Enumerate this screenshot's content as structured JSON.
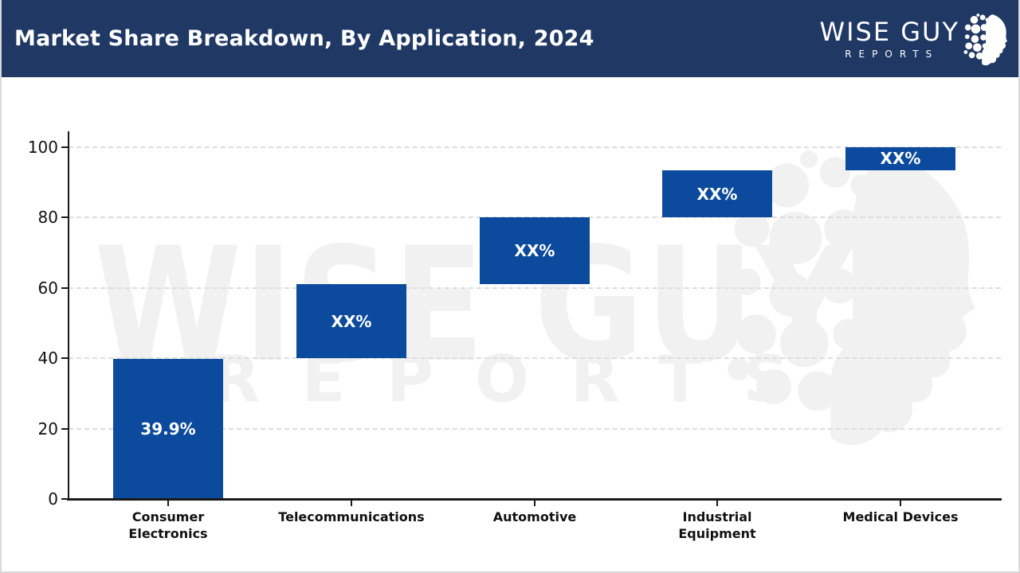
{
  "header": {
    "title": "Market Share Breakdown, By Application, 2024",
    "logo": {
      "line1": "WISE GUY",
      "line2": "REPORTS"
    }
  },
  "watermark": {
    "line1": "WISE GUY",
    "line2": "REPORTS"
  },
  "chart_data": {
    "type": "bar",
    "subtype": "waterfall",
    "title": "Market Share Breakdown, By Application, 2024",
    "categories": [
      "Consumer Electronics",
      "Telecommunications",
      "Automotive",
      "Industrial Equipment",
      "Medical Devices"
    ],
    "tick_labels": [
      "Consumer\nElectronics",
      "Telecommunications",
      "Automotive",
      "Industrial\nEquipment",
      "Medical Devices"
    ],
    "segments": [
      {
        "category": "Consumer Electronics",
        "start": 0,
        "end": 39.9,
        "label": "39.9%"
      },
      {
        "category": "Telecommunications",
        "start": 40,
        "end": 61,
        "label": "XX%"
      },
      {
        "category": "Automotive",
        "start": 61,
        "end": 80,
        "label": "XX%"
      },
      {
        "category": "Industrial Equipment",
        "start": 80,
        "end": 93.5,
        "label": "XX%"
      },
      {
        "category": "Medical Devices",
        "start": 93.5,
        "end": 100,
        "label": "XX%"
      }
    ],
    "ylim": [
      0,
      105
    ],
    "yticks": [
      0,
      20,
      40,
      60,
      80,
      100
    ],
    "grid": "horizontal-dashed",
    "legend": "none",
    "bar_color": "#0b4a9c",
    "bar_label_color": "#ffffff"
  },
  "colors": {
    "header_bg": "#1f3864",
    "bar": "#0b4a9c",
    "grid": "#dcdcdc",
    "axis": "#1a1a1a",
    "watermark": "#f1f1f1"
  }
}
